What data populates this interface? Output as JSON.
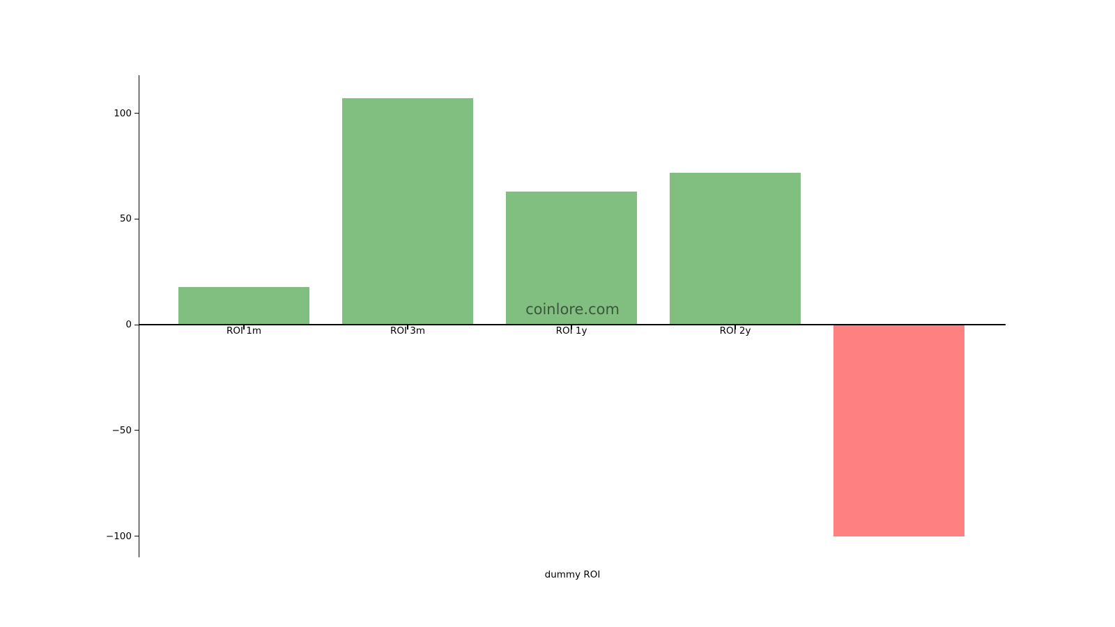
{
  "figure": {
    "background": "#ffffff",
    "watermark": "coinlore.com"
  },
  "chart_data": {
    "type": "bar",
    "title": "",
    "xlabel": "dummy ROI",
    "ylabel": "",
    "categories": [
      "ROI 1m",
      "ROI 3m",
      "ROI 1y",
      "ROI 2y",
      ""
    ],
    "values": [
      18,
      107,
      63,
      72,
      -100
    ],
    "yticks": [
      100,
      50,
      0,
      -50,
      -100
    ],
    "ylim": [
      -110,
      118
    ],
    "grid": false,
    "legend": "none",
    "colors": {
      "positive": "#80bf80",
      "negative": "#ff8080",
      "axis": "#000000",
      "tick_text": "#000000",
      "watermark": "rgba(0,0,0,0.55)"
    }
  }
}
